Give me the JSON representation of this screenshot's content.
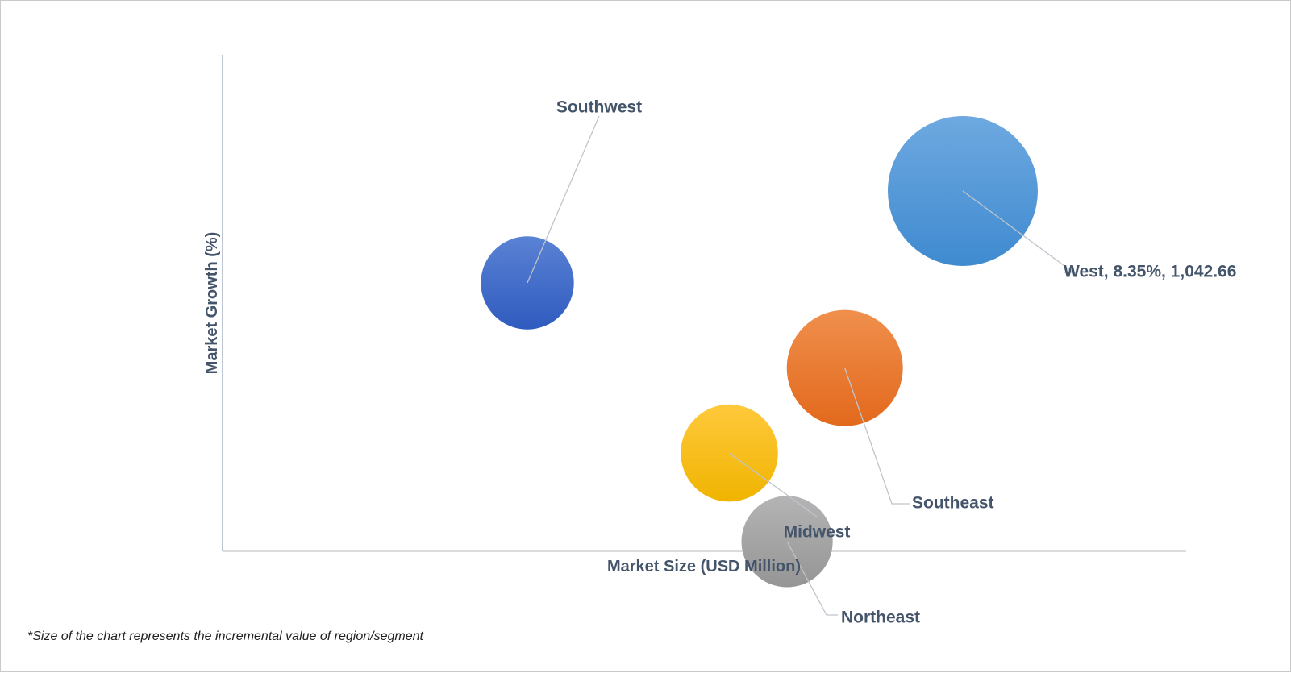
{
  "chart_data": {
    "type": "bubble",
    "xlabel": "Market Size (USD Million)",
    "ylabel": "Market Growth (%)",
    "axes_tick_labels": false,
    "grid": false,
    "legend": "none",
    "bubbles": [
      {
        "label": "West, 8.35%, 1,042.66",
        "color": "#5b9bd5",
        "x": 1042.66,
        "y": 8.35,
        "size": 1.0
      },
      {
        "label": "Southwest",
        "color": "#4472c4",
        "x": 590,
        "y": 7.0,
        "size": 0.385
      },
      {
        "label": "Southeast",
        "color": "#ed7d31",
        "x": 920,
        "y": 5.75,
        "size": 0.6
      },
      {
        "label": "Midwest",
        "color": "#ffc000",
        "x": 800,
        "y": 4.5,
        "size": 0.42
      },
      {
        "label": "Northeast",
        "color": "#a5a5a5",
        "x": 860,
        "y": 3.2,
        "size": 0.37
      }
    ]
  },
  "footnote": "*Size of the chart represents the incremental value of region/segment"
}
